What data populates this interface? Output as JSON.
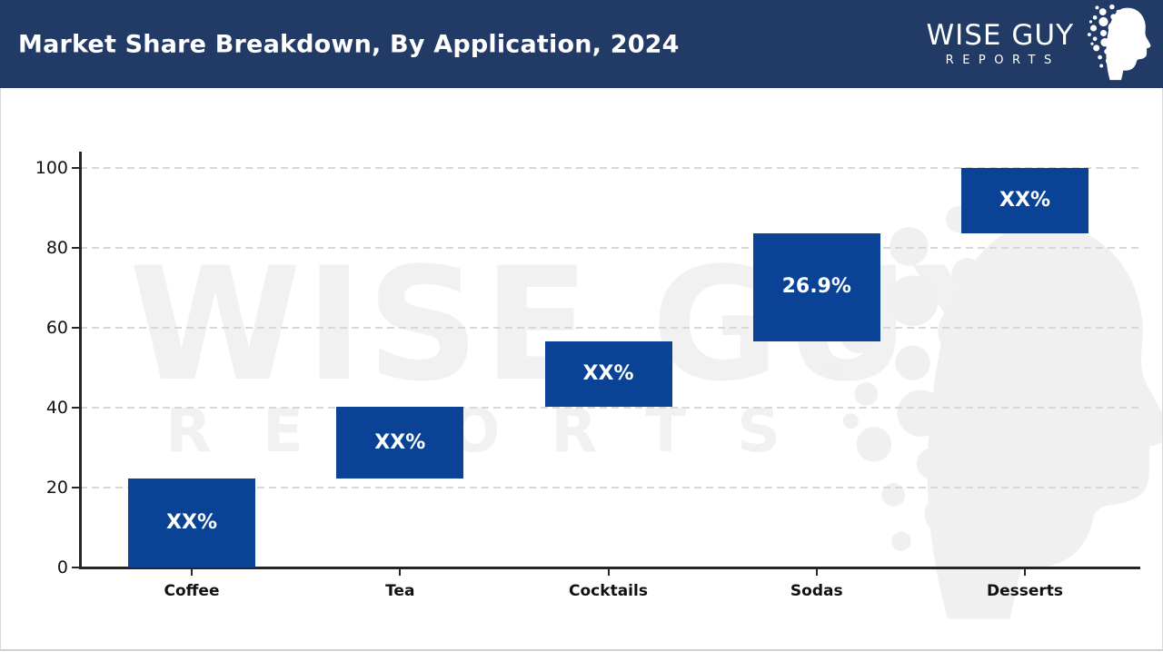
{
  "header": {
    "title": "Market Share Breakdown, By Application, 2024",
    "logo": {
      "line1": "WISE GUY",
      "line2": "REPORTS"
    }
  },
  "watermark": {
    "line1": "WISE GUY",
    "line2": "REPORTS"
  },
  "colors": {
    "header_bg": "#213a66",
    "bar_fill": "#0a4395",
    "bar_label": "#ffffff",
    "axis": "#262626",
    "gridline": "#d8d8d8",
    "tick_label": "#111111",
    "watermark": "#f1f1f1"
  },
  "chart_data": {
    "type": "bar",
    "variant": "waterfall",
    "title": "Market Share Breakdown, By Application, 2024",
    "categories": [
      "Coffee",
      "Tea",
      "Cocktails",
      "Sodas",
      "Desserts"
    ],
    "segments": [
      {
        "category": "Coffee",
        "start": 0,
        "end": 22.2,
        "label": "XX%"
      },
      {
        "category": "Tea",
        "start": 22.2,
        "end": 40.2,
        "label": "XX%"
      },
      {
        "category": "Cocktails",
        "start": 40.2,
        "end": 56.7,
        "label": "XX%"
      },
      {
        "category": "Sodas",
        "start": 56.7,
        "end": 83.6,
        "label": "26.9%"
      },
      {
        "category": "Desserts",
        "start": 83.6,
        "end": 100,
        "label": "XX%"
      }
    ],
    "y_ticks": [
      0,
      20,
      40,
      60,
      80,
      100
    ],
    "ylim": [
      0,
      104
    ],
    "xlabel": "",
    "ylabel": "",
    "grid": "horizontal-dashed",
    "legend": "none"
  }
}
